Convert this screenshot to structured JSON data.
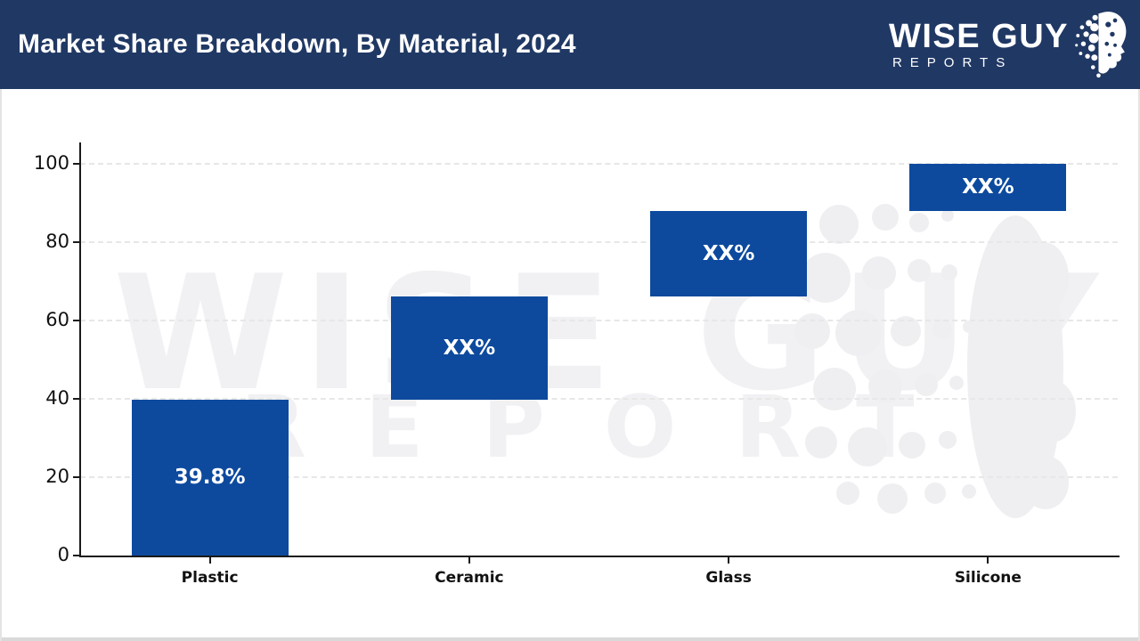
{
  "header": {
    "title": "Market Share Breakdown, By Material, 2024",
    "background_color": "#203864",
    "logo": {
      "line1": "WISE GUY",
      "line2": "REPORTS"
    }
  },
  "watermark": {
    "line1": "WISE GUY",
    "line2": "REPORTS"
  },
  "chart_data": {
    "type": "bar",
    "subtype": "waterfall",
    "title": "Market Share Breakdown, By Material, 2024",
    "categories": [
      "Plastic",
      "Ceramic",
      "Glass",
      "Silicone"
    ],
    "segments": [
      {
        "category": "Plastic",
        "start": 0,
        "end": 39.8,
        "label": "39.8%"
      },
      {
        "category": "Ceramic",
        "start": 39.8,
        "end": 66.2,
        "label": "XX%"
      },
      {
        "category": "Glass",
        "start": 66.2,
        "end": 88.0,
        "label": "XX%"
      },
      {
        "category": "Silicone",
        "start": 88.0,
        "end": 100,
        "label": "XX%"
      }
    ],
    "values_pct": [
      39.8,
      26.4,
      21.8,
      12.0
    ],
    "bar_labels": [
      "39.8%",
      "XX%",
      "XX%",
      "XX%"
    ],
    "xlabel": "",
    "ylabel": "",
    "ylim": [
      0,
      105
    ],
    "yticks": [
      0,
      20,
      40,
      60,
      80,
      100
    ],
    "grid": "horizontal-dashed",
    "legend": "none",
    "bar_color": "#0d4a9e",
    "bar_label_color": "#ffffff"
  }
}
